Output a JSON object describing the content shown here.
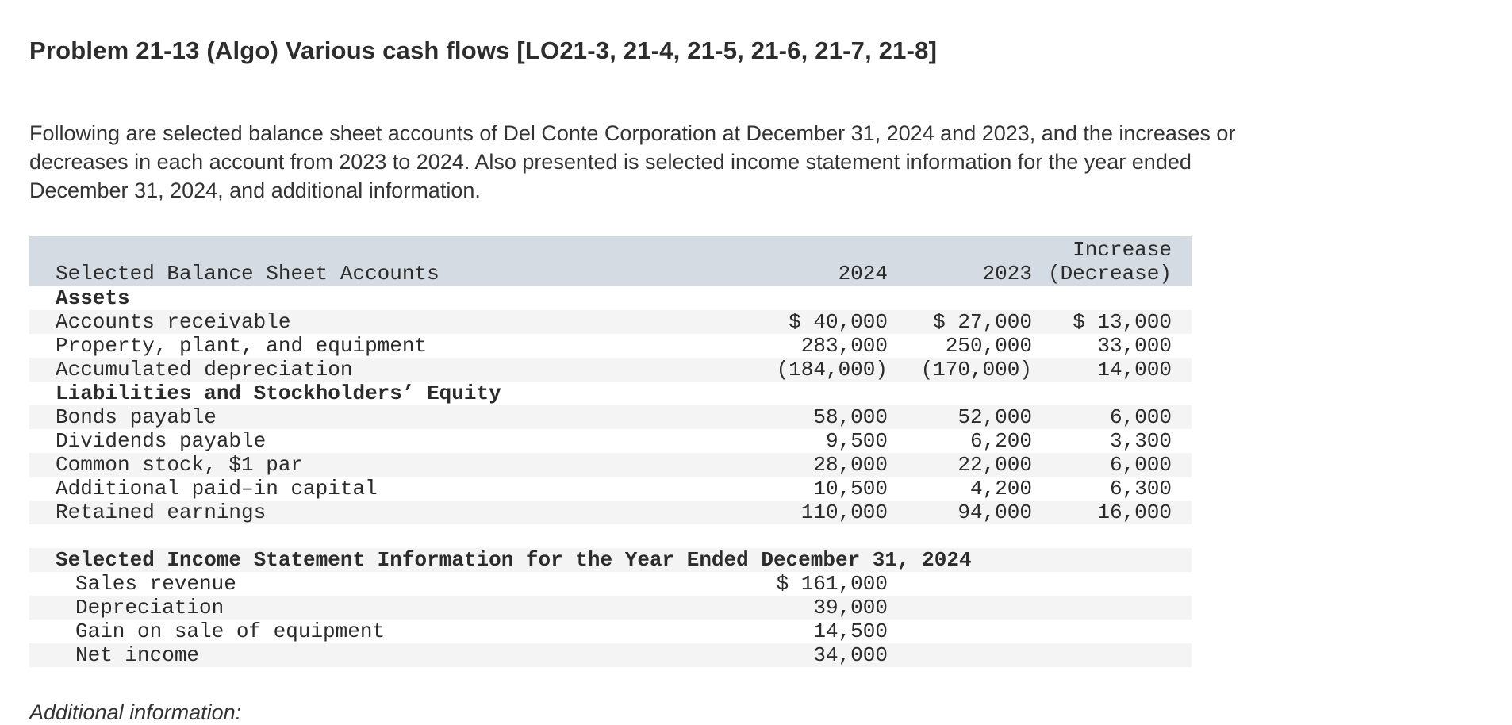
{
  "page": {
    "title": "Problem 21-13 (Algo) Various cash flows [LO21-3, 21-4, 21-5, 21-6, 21-7, 21-8]",
    "intro": "Following are selected balance sheet accounts of Del Conte Corporation at December 31, 2024 and 2023, and the increases or\ndecreases in each account from 2023 to 2024. Also presented is selected income statement information for the year ended\nDecember 31, 2024, and additional information.",
    "additional_info_label": "Additional information:"
  },
  "table": {
    "header": {
      "accounts": "Selected Balance Sheet Accounts",
      "col_2024": "2024",
      "col_2023": "2023",
      "change": "Increase\n(Decrease)"
    },
    "rows": [
      {
        "kind": "section",
        "label": "Assets"
      },
      {
        "kind": "data",
        "label": "Accounts receivable",
        "y2024": "$ 40,000",
        "y2023": "$ 27,000",
        "change": "$ 13,000"
      },
      {
        "kind": "data",
        "label": "Property, plant, and equipment",
        "y2024": "283,000",
        "y2023": "250,000",
        "change": "33,000"
      },
      {
        "kind": "data",
        "label": "Accumulated depreciation",
        "y2024": "(184,000)",
        "y2023": "(170,000)",
        "change": "14,000"
      },
      {
        "kind": "section",
        "label": "Liabilities and Stockholders’ Equity"
      },
      {
        "kind": "data",
        "label": "Bonds payable",
        "y2024": "58,000",
        "y2023": "52,000",
        "change": "6,000"
      },
      {
        "kind": "data",
        "label": "Dividends payable",
        "y2024": "9,500",
        "y2023": "6,200",
        "change": "3,300"
      },
      {
        "kind": "data",
        "label": "Common stock, $1 par",
        "y2024": "28,000",
        "y2023": "22,000",
        "change": "6,000"
      },
      {
        "kind": "data",
        "label": "Additional paid–in capital",
        "y2024": "10,500",
        "y2023": "4,200",
        "change": "6,300"
      },
      {
        "kind": "data",
        "label": "Retained earnings",
        "y2024": "110,000",
        "y2023": "94,000",
        "change": "16,000"
      },
      {
        "kind": "blank"
      },
      {
        "kind": "income-header",
        "label": "Selected Income Statement Information for the Year Ended December 31, 2024"
      },
      {
        "kind": "income",
        "label": "Sales revenue",
        "value": "$ 161,000"
      },
      {
        "kind": "income",
        "label": "Depreciation",
        "value": "39,000"
      },
      {
        "kind": "income",
        "label": "Gain on sale of equipment",
        "value": "14,500"
      },
      {
        "kind": "income",
        "label": "Net income",
        "value": "34,000"
      }
    ]
  }
}
